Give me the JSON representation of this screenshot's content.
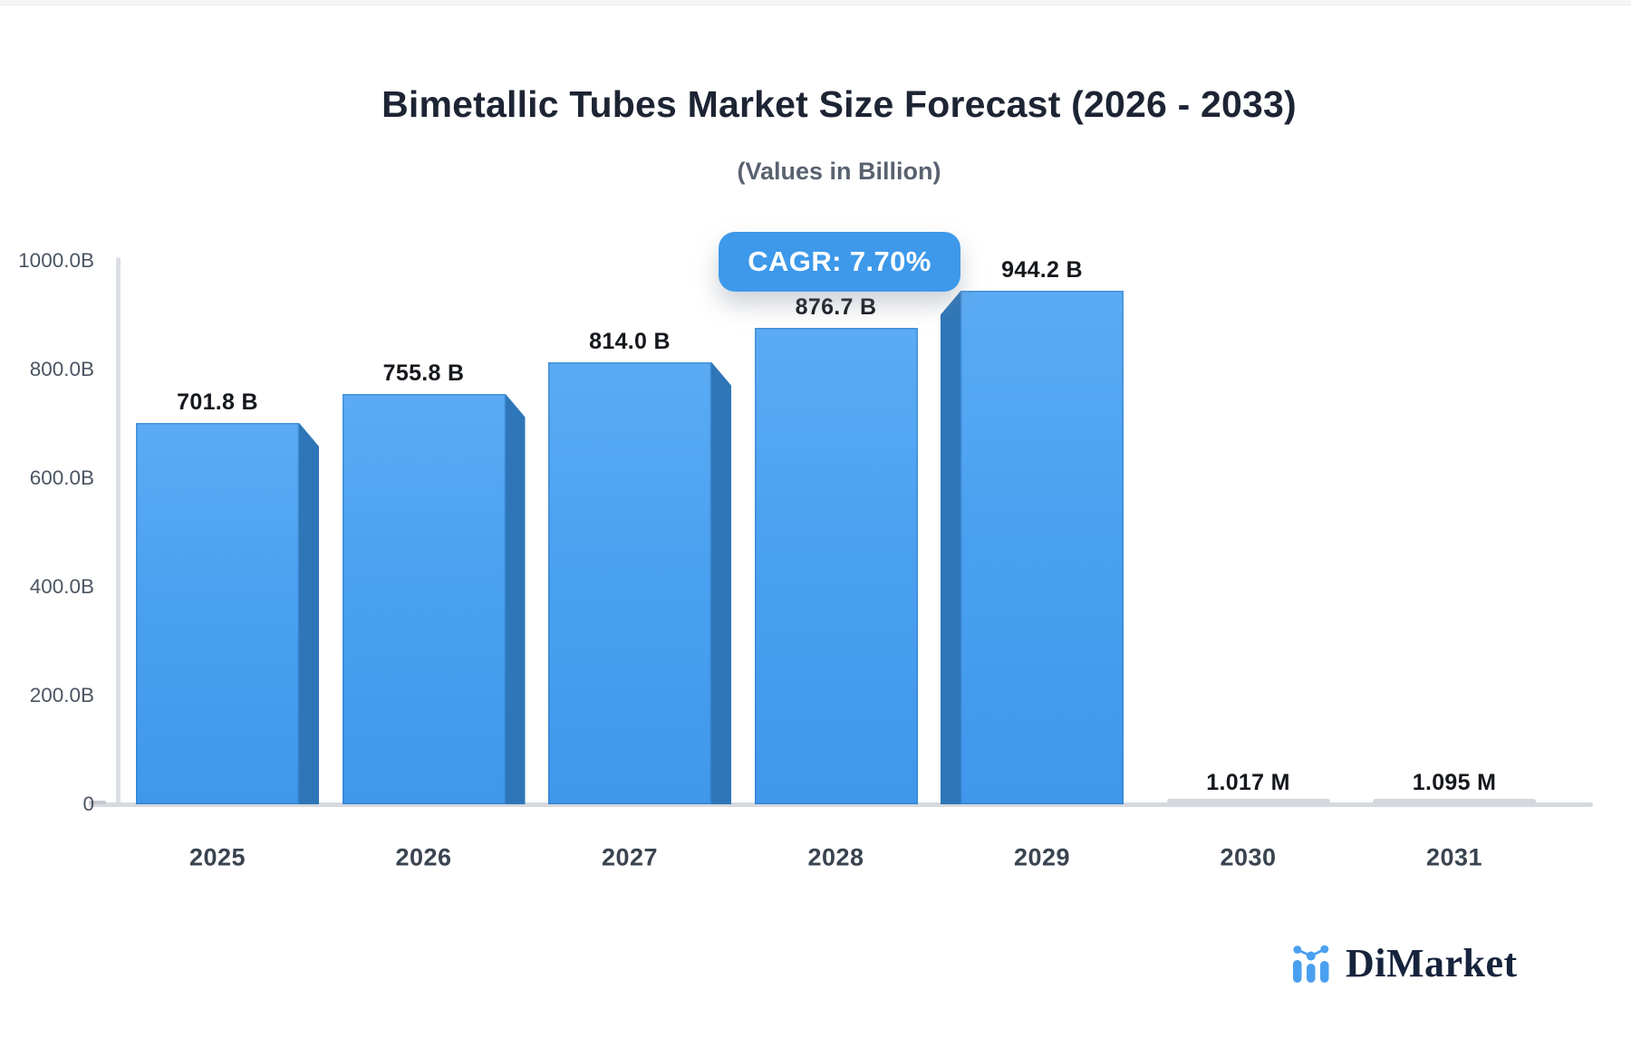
{
  "header": {
    "title": "Bimetallic Tubes Market Size Forecast (2026 - 2033)",
    "subtitle": "(Values in Billion)"
  },
  "cagr_badge": {
    "label": "CAGR: 7.70%",
    "background_color": "#3e99ea",
    "text_color": "#ffffff"
  },
  "chart_data": {
    "type": "bar",
    "title": "Bimetallic Tubes Market Size Forecast (2026 - 2033)",
    "subtitle": "(Values in Billion)",
    "categories": [
      "2025",
      "2026",
      "2027",
      "2028",
      "2029",
      "2030",
      "2031"
    ],
    "values": [
      701.8,
      755.8,
      814.0,
      876.7,
      944.2,
      1.017,
      1.095
    ],
    "value_units": [
      "B",
      "B",
      "B",
      "B",
      "B",
      "M",
      "M"
    ],
    "value_labels": [
      "701.8 B",
      "755.8 B",
      "814.0 B",
      "876.7 B",
      "944.2 B",
      "1.017 M",
      "1.095 M"
    ],
    "y_tick_labels": [
      "1000.0B",
      "800.0B",
      "600.0B",
      "400.0B",
      "200.0B",
      "0"
    ],
    "y_tick_values": [
      1000,
      800,
      600,
      400,
      200,
      0
    ],
    "ylim": [
      0,
      1000
    ],
    "grid": false,
    "legend": false,
    "bar_color": "#4da3f0",
    "bar_side_color": "#2e76b8",
    "tiny_bar_color": "#d4d8de",
    "axis_color": "#d6d9de"
  },
  "logo": {
    "text": "DiMarket",
    "icon": "bar-chart-line-icon",
    "icon_color": "#4aa0f0",
    "text_color": "#16233c"
  }
}
